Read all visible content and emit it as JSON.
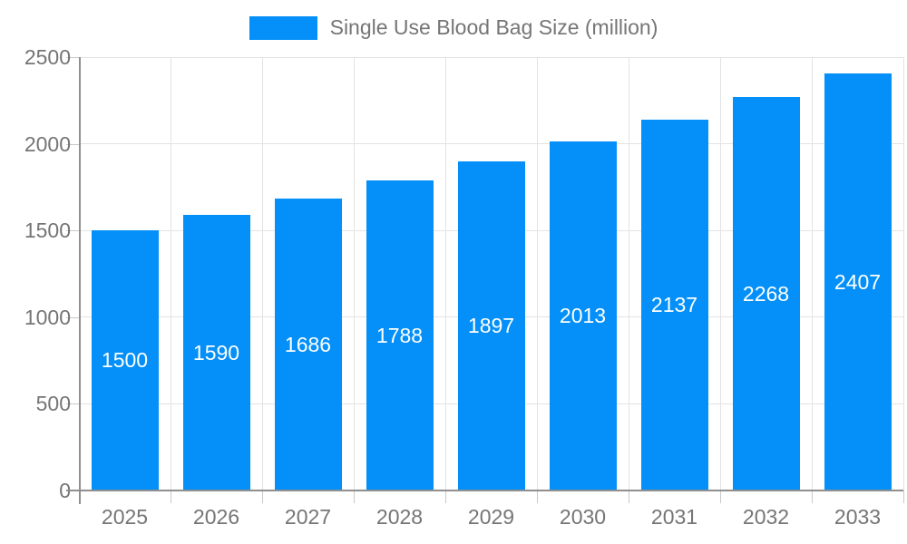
{
  "chart_data": {
    "type": "bar",
    "title": "",
    "legend": "Single Use Blood Bag Size (million)",
    "legend_position": "top-center",
    "categories": [
      "2025",
      "2026",
      "2027",
      "2028",
      "2029",
      "2030",
      "2031",
      "2032",
      "2033"
    ],
    "values": [
      1500,
      1590,
      1686,
      1788,
      1897,
      2013,
      2137,
      2268,
      2407
    ],
    "value_labels": [
      "1500",
      "1590",
      "1686",
      "1788",
      "1897",
      "2013",
      "2137",
      "2268",
      "2407"
    ],
    "xlabel": "",
    "ylabel": "",
    "ylim": [
      0,
      2500
    ],
    "yticks": [
      "0",
      "500",
      "1000",
      "1500",
      "2000",
      "2500"
    ],
    "ytick_values": [
      0,
      500,
      1000,
      1500,
      2000,
      2500
    ],
    "grid": true,
    "colors": {
      "bar": "#0490f8",
      "bar_value_text": "#ffffff",
      "axis_text": "#757575",
      "legend_text": "#757575",
      "gridline": "#e3e3e3",
      "axis_line": "#8f8f8f",
      "background": "#ffffff"
    }
  }
}
